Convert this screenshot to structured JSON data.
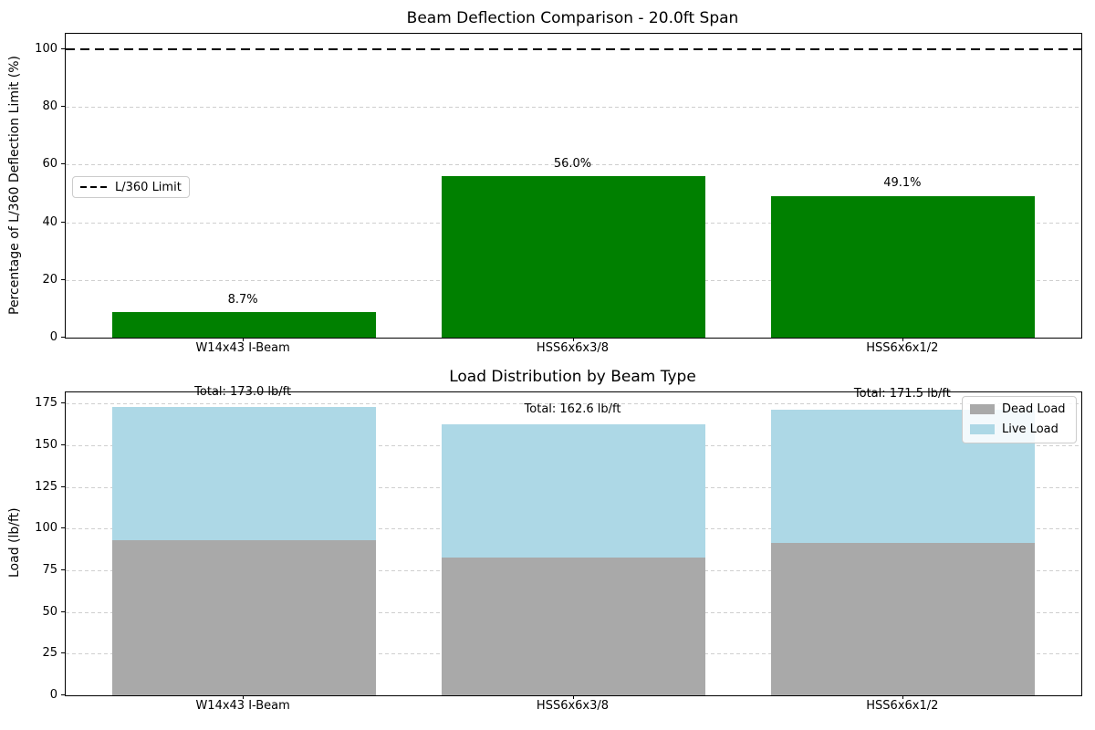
{
  "chart_data": [
    {
      "type": "bar",
      "title": "Beam Deflection Comparison - 20.0ft Span",
      "ylabel": "Percentage of L/360 Deflection Limit (%)",
      "categories": [
        "W14x43 I-Beam",
        "HSS6x6x3/8",
        "HSS6x6x1/2"
      ],
      "values": [
        8.7,
        56.0,
        49.1
      ],
      "bar_labels": [
        "8.7%",
        "56.0%",
        "49.1%"
      ],
      "bar_color": "#008000",
      "ylim": [
        0,
        105.3
      ],
      "yticks": [
        0,
        20,
        40,
        60,
        80,
        100
      ],
      "grid": true,
      "legend_position": "center-left",
      "ref_line": {
        "value": 100,
        "label": "L/360 Limit",
        "color": "#000000",
        "style": "dashed"
      }
    },
    {
      "type": "bar",
      "subtype": "stacked",
      "title": "Load Distribution by Beam Type",
      "ylabel": "Load (lb/ft)",
      "categories": [
        "W14x43 I-Beam",
        "HSS6x6x3/8",
        "HSS6x6x1/2"
      ],
      "series": [
        {
          "name": "Dead Load",
          "values": [
            93.0,
            82.6,
            91.5
          ],
          "color": "#a9a9a9"
        },
        {
          "name": "Live Load",
          "values": [
            80.0,
            80.0,
            80.0
          ],
          "color": "#add8e6"
        }
      ],
      "totals": [
        173.0,
        162.6,
        171.5
      ],
      "total_labels": [
        "Total: 173.0 lb/ft",
        "Total: 162.6 lb/ft",
        "Total: 171.5 lb/ft"
      ],
      "ylim": [
        0,
        181.65
      ],
      "yticks": [
        0,
        25,
        50,
        75,
        100,
        125,
        150,
        175
      ],
      "grid": true,
      "legend_position": "upper-right"
    }
  ]
}
